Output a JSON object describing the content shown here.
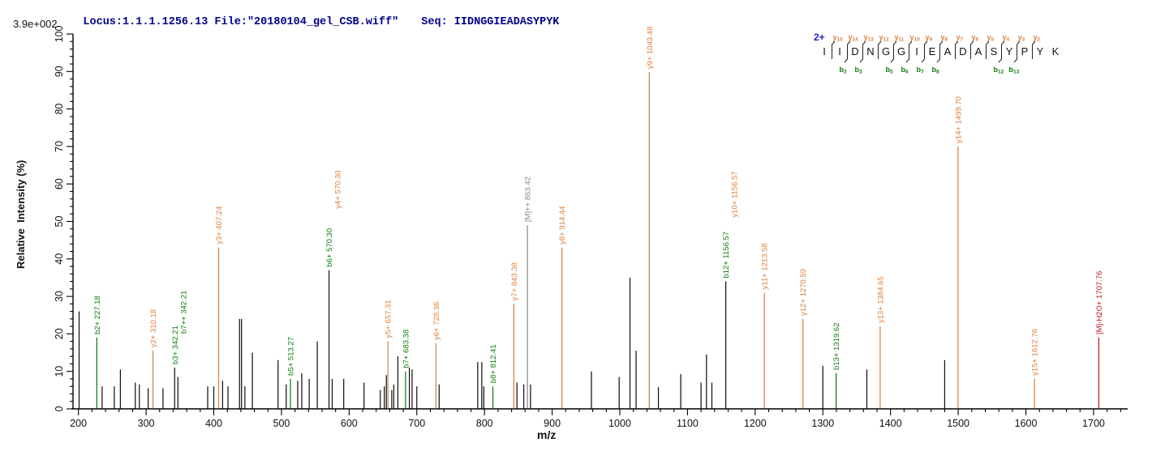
{
  "header": {
    "locus_file": "Locus:1.1.1.1256.13 File:\"20180104_gel_CSB.wiff\"",
    "seq": "Seq: IIDNGGIEADASYPYK"
  },
  "axes": {
    "intensity_scale": "3.9e+002",
    "ylabel": "Relative  Intensity (%)",
    "xlabel": "m/z"
  },
  "fragment_map": {
    "charge": "2+",
    "residues": [
      "I",
      "I",
      "D",
      "N",
      "G",
      "G",
      "I",
      "E",
      "A",
      "D",
      "A",
      "S",
      "Y",
      "P",
      "Y",
      "K"
    ],
    "cleavages": [
      {
        "y": "15",
        "b": null
      },
      {
        "y": "14",
        "b": "2"
      },
      {
        "y": "13",
        "b": "3"
      },
      {
        "y": "12",
        "b": null
      },
      {
        "y": "11",
        "b": "5"
      },
      {
        "y": "10",
        "b": "6"
      },
      {
        "y": "9",
        "b": "7"
      },
      {
        "y": "8",
        "b": "8"
      },
      {
        "y": "7",
        "b": null
      },
      {
        "y": "6",
        "b": null
      },
      {
        "y": "5",
        "b": null
      },
      {
        "y": "4",
        "b": "12"
      },
      {
        "y": "3",
        "b": "13"
      },
      {
        "y": "2",
        "b": null
      }
    ]
  },
  "colors": {
    "header_blue": "#00008B",
    "charge_blue": "#2020E0",
    "y_ion": "#E0803C",
    "b_ion": "#0E7D10",
    "precursor": "#8C8C8C",
    "mh2o": "#BE1A1A",
    "peak": "#141414",
    "axis": "#000000"
  },
  "chart_data": {
    "type": "bar",
    "subtype": "ms2-peptide-fragment-spectrum",
    "title": "Locus:1.1.1.1256.13 File:\"20180104_gel_CSB.wiff\" Seq: IIDNGGIEADASYPYK",
    "xlabel": "m/z",
    "ylabel": "Relative Intensity (%)",
    "xlim": [
      192,
      1748
    ],
    "ylim": [
      0,
      100
    ],
    "x_major_tick_step": 100,
    "x_minor_tick_step": 20,
    "y_major_tick_step": 10,
    "y_minor_tick_step": 2,
    "x_tick_labels": [
      200,
      300,
      400,
      500,
      600,
      700,
      800,
      900,
      1000,
      1100,
      1200,
      1300,
      1400,
      1500,
      1600,
      1700
    ],
    "y_tick_labels": [
      0,
      10,
      20,
      30,
      40,
      50,
      60,
      70,
      80,
      90,
      100
    ],
    "base_peak_intensity_label": "3.9e+002",
    "peaks": [
      {
        "mz": 201,
        "h": 26
      },
      {
        "mz": 227.18,
        "h": 19,
        "ion": "b",
        "label": "b2+ 227.18"
      },
      {
        "mz": 235,
        "h": 6
      },
      {
        "mz": 253,
        "h": 6
      },
      {
        "mz": 262,
        "h": 10.5
      },
      {
        "mz": 284,
        "h": 7
      },
      {
        "mz": 290,
        "h": 6.5
      },
      {
        "mz": 303,
        "h": 5.5
      },
      {
        "mz": 310.18,
        "h": 15.5,
        "ion": "y",
        "label": "y2+ 310.18"
      },
      {
        "mz": 325,
        "h": 5.5
      },
      {
        "mz": 342.21,
        "h": 11,
        "ion": "by",
        "label": "b3+ 342.21",
        "label_color": "b",
        "label2": "b7++ 342.21",
        "label2_color": "b",
        "label2_rise": 38
      },
      {
        "mz": 347,
        "h": 8.5
      },
      {
        "mz": 391,
        "h": 6
      },
      {
        "mz": 400,
        "h": 6
      },
      {
        "mz": 407.24,
        "h": 43,
        "ion": "y",
        "label": "y3+ 407.24"
      },
      {
        "mz": 413,
        "h": 7.5
      },
      {
        "mz": 421,
        "h": 6
      },
      {
        "mz": 438,
        "h": 24
      },
      {
        "mz": 441,
        "h": 24
      },
      {
        "mz": 446,
        "h": 6
      },
      {
        "mz": 457,
        "h": 15
      },
      {
        "mz": 495,
        "h": 13
      },
      {
        "mz": 507,
        "h": 6.5
      },
      {
        "mz": 513.27,
        "h": 8,
        "ion": "b",
        "label": "b5+ 513.27"
      },
      {
        "mz": 524,
        "h": 7.5
      },
      {
        "mz": 530,
        "h": 9.5
      },
      {
        "mz": 541,
        "h": 8
      },
      {
        "mz": 553,
        "h": 18
      },
      {
        "mz": 570.3,
        "h": 37,
        "ion": "by",
        "label": "b6+ 570.30",
        "label_color": "b",
        "label2": "y4+ 570.30",
        "label2_color": "y",
        "label2_rise": 72
      },
      {
        "mz": 575,
        "h": 8
      },
      {
        "mz": 592,
        "h": 8
      },
      {
        "mz": 622,
        "h": 7
      },
      {
        "mz": 646,
        "h": 5
      },
      {
        "mz": 652,
        "h": 6
      },
      {
        "mz": 655,
        "h": 9
      },
      {
        "mz": 657.31,
        "h": 18,
        "ion": "y",
        "label": "y5+ 657.31"
      },
      {
        "mz": 663,
        "h": 5
      },
      {
        "mz": 666,
        "h": 6.5
      },
      {
        "mz": 672,
        "h": 14
      },
      {
        "mz": 683.38,
        "h": 10,
        "ion": "b",
        "label": "b7+ 683.38"
      },
      {
        "mz": 689,
        "h": 11
      },
      {
        "mz": 693,
        "h": 10.5
      },
      {
        "mz": 700,
        "h": 6
      },
      {
        "mz": 728.36,
        "h": 17.5,
        "ion": "y",
        "label": "y6+ 728.36"
      },
      {
        "mz": 733,
        "h": 6.5
      },
      {
        "mz": 790,
        "h": 12.5
      },
      {
        "mz": 796,
        "h": 12.5
      },
      {
        "mz": 799,
        "h": 6
      },
      {
        "mz": 812.41,
        "h": 6,
        "ion": "b",
        "label": "b8+ 812.41"
      },
      {
        "mz": 843.38,
        "h": 28,
        "ion": "y",
        "label": "y7+ 843.38"
      },
      {
        "mz": 848,
        "h": 7
      },
      {
        "mz": 858,
        "h": 6.5
      },
      {
        "mz": 863.42,
        "h": 49,
        "ion": "M",
        "label": "[M]++ 863.42"
      },
      {
        "mz": 868,
        "h": 6.5
      },
      {
        "mz": 914.44,
        "h": 43,
        "ion": "y",
        "label": "y8+ 914.44"
      },
      {
        "mz": 958,
        "h": 10
      },
      {
        "mz": 999,
        "h": 8.5
      },
      {
        "mz": 1015,
        "h": 35
      },
      {
        "mz": 1024,
        "h": 15.5
      },
      {
        "mz": 1043.48,
        "h": 100,
        "ion": "y",
        "label": "y9+ 1043.48"
      },
      {
        "mz": 1057,
        "h": 5.8
      },
      {
        "mz": 1090,
        "h": 9.3
      },
      {
        "mz": 1120,
        "h": 7
      },
      {
        "mz": 1128,
        "h": 14.5
      },
      {
        "mz": 1136,
        "h": 7
      },
      {
        "mz": 1156.57,
        "h": 34,
        "ion": "by",
        "label": "b12+ 1156.57",
        "label_color": "b",
        "label2": "y10+ 1156.57",
        "label2_color": "y",
        "label2_rise": 75
      },
      {
        "mz": 1213.58,
        "h": 31,
        "ion": "y",
        "label": "y11+ 1213.58"
      },
      {
        "mz": 1270.59,
        "h": 24,
        "ion": "y",
        "label": "y12+ 1270.59"
      },
      {
        "mz": 1300,
        "h": 11.5
      },
      {
        "mz": 1319.62,
        "h": 9.5,
        "ion": "b",
        "label": "b13+ 1319.62"
      },
      {
        "mz": 1365,
        "h": 10.5
      },
      {
        "mz": 1384.65,
        "h": 22,
        "ion": "y",
        "label": "y13+ 1384.65"
      },
      {
        "mz": 1480,
        "h": 13
      },
      {
        "mz": 1499.7,
        "h": 70,
        "ion": "y",
        "label": "y14+ 1499.70"
      },
      {
        "mz": 1612.76,
        "h": 8,
        "ion": "y",
        "label": "y15+ 1612.76"
      },
      {
        "mz": 1707.76,
        "h": 19,
        "ion": "MH2O",
        "label": "[M]-H2O+ 1707.76"
      }
    ]
  }
}
